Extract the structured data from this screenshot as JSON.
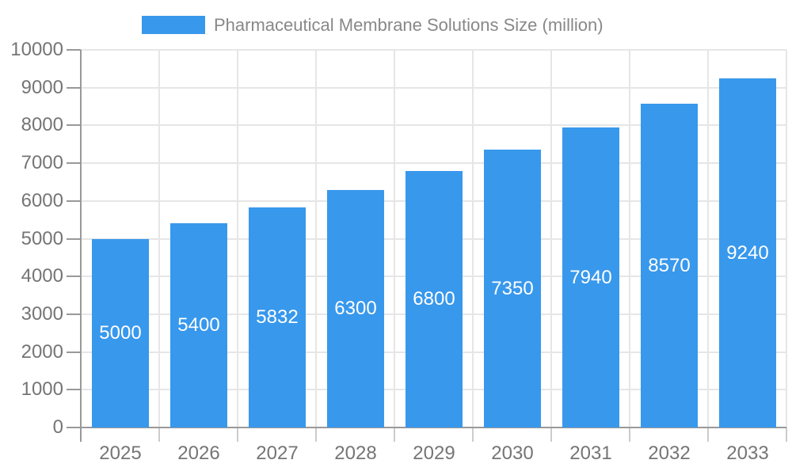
{
  "legend": {
    "label": "Pharmaceutical Membrane Solutions Size (million)"
  },
  "chart_data": {
    "type": "bar",
    "title": "Pharmaceutical Membrane Solutions Size (million)",
    "categories": [
      "2025",
      "2026",
      "2027",
      "2028",
      "2029",
      "2030",
      "2031",
      "2032",
      "2033"
    ],
    "values": [
      5000,
      5400,
      5832,
      6300,
      6800,
      7350,
      7940,
      8570,
      9240
    ],
    "xlabel": "",
    "ylabel": "",
    "ylim": [
      0,
      10000
    ],
    "ytick_step": 1000,
    "ytick_labels": [
      "0",
      "1000",
      "2000",
      "3000",
      "4000",
      "5000",
      "6000",
      "7000",
      "8000",
      "9000",
      "10000"
    ],
    "legend_position": "top",
    "grid": true,
    "data_labels": "inside-center",
    "colors": {
      "bar": "#3898EC",
      "bar_label": "#FFFFFF",
      "axis_text": "#757575",
      "legend_text": "#888888",
      "grid_line": "#E6E6E6",
      "axis_line": "#999999",
      "x_tick": "#CCCCCC"
    }
  }
}
